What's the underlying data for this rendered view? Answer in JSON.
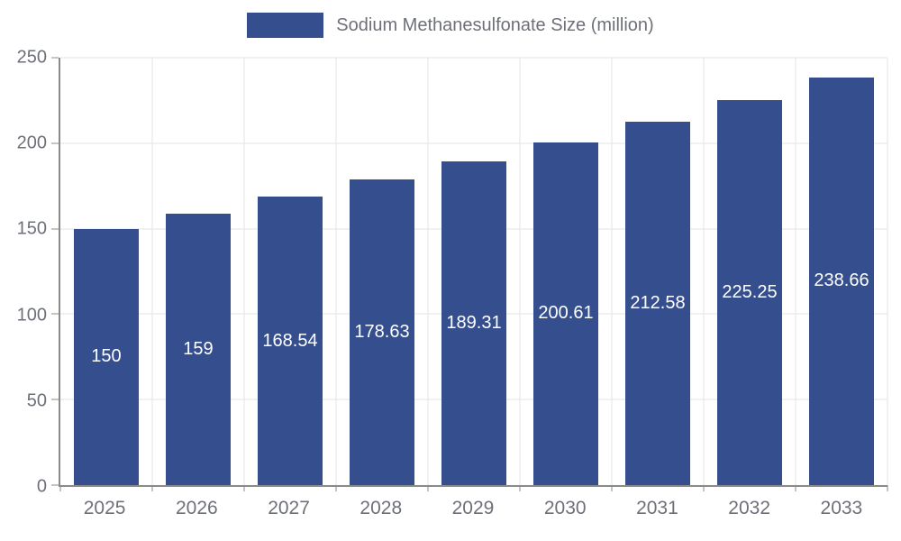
{
  "chart_data": {
    "type": "bar",
    "title": "Sodium Methanesulfonate Size (million)",
    "categories": [
      "2025",
      "2026",
      "2027",
      "2028",
      "2029",
      "2030",
      "2031",
      "2032",
      "2033"
    ],
    "values": [
      150,
      159,
      168.54,
      178.63,
      189.31,
      200.61,
      212.58,
      225.25,
      238.66
    ],
    "value_labels": [
      "150",
      "159",
      "168.54",
      "178.63",
      "189.31",
      "200.61",
      "212.58",
      "225.25",
      "238.66"
    ],
    "xlabel": "",
    "ylabel": "",
    "ylim": [
      0,
      250
    ],
    "yticks": [
      0,
      50,
      100,
      150,
      200,
      250
    ],
    "grid": true,
    "legend_position": "top-center",
    "colors": {
      "bar": "#354e8e",
      "value_label": "#ffffff",
      "axis": "#8a8a8a",
      "grid": "#e3e3e3",
      "text": "#6e7079",
      "background": "#ffffff"
    }
  }
}
